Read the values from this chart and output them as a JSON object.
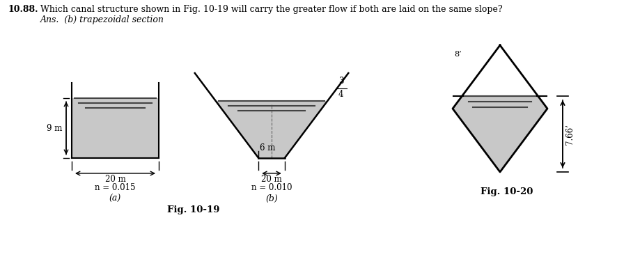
{
  "title_num": "10.88.",
  "title_text": "Which canal structure shown in Fig. 10-19 will carry the greater flow if both are laid on the same slope?",
  "ans_text": "Ans.  (b) trapezoidal section",
  "fig_a_label": "(a)",
  "fig_b_label": "(b)",
  "fig10_19_label": "Fig. 10-19",
  "fig10_20_label": "Fig. 10-20",
  "fig_a_width_label": "20 m",
  "fig_a_n_label": "n = 0.015",
  "fig_a_height_label": "9 m",
  "fig_b_width_label": "20 m",
  "fig_b_n_label": "n = 0.010",
  "fig_b_bottom_label": "6 m",
  "fig_b_slope_3": "3",
  "fig_b_slope_4": "4",
  "fig_c_height_label": "7.66’",
  "fig_c_top_label": "8’",
  "background_color": "#ffffff",
  "water_fill_color": "#c8c8c8",
  "line_color": "#000000",
  "water_line_color": "#444444"
}
